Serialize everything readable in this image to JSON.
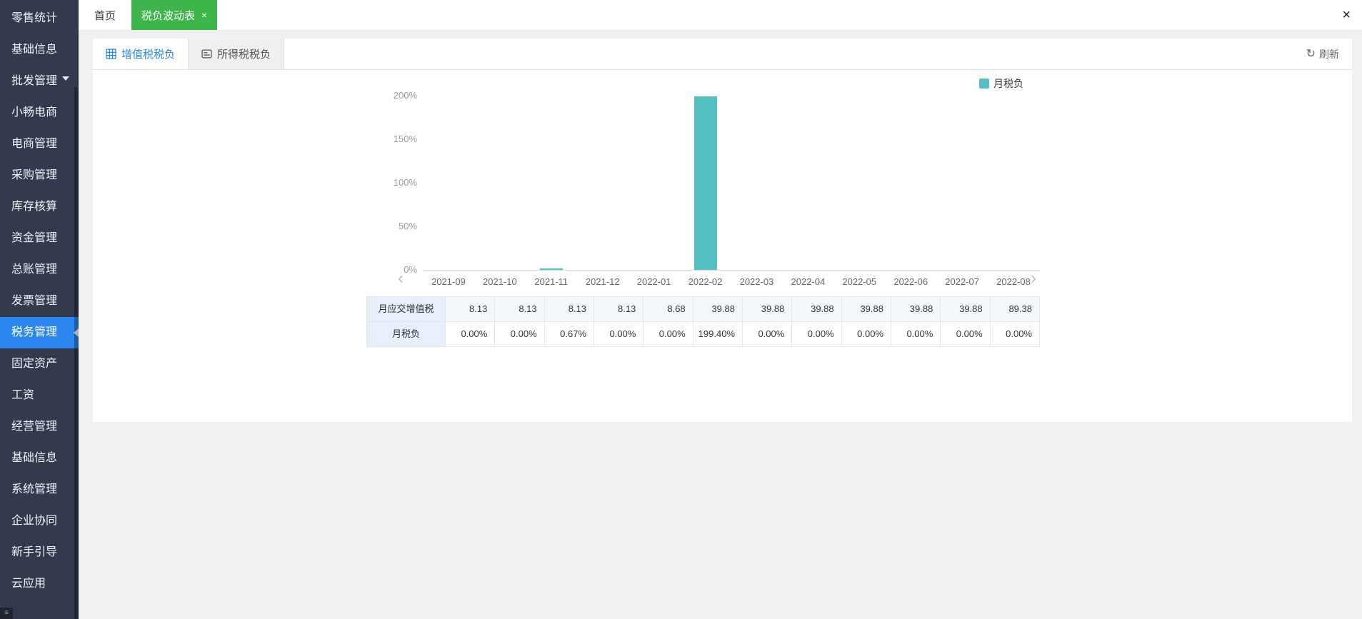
{
  "window": {
    "close_icon": "×"
  },
  "topbar": {
    "home_tab": "首页",
    "active_tab": {
      "label": "税负波动表",
      "close_icon": "×"
    }
  },
  "sidebar": {
    "footer_icon": "≡",
    "items": [
      {
        "label": "零售统计"
      },
      {
        "label": "基础信息"
      },
      {
        "label": "批发管理",
        "has_caret": true
      },
      {
        "label": "小畅电商"
      },
      {
        "label": "电商管理"
      },
      {
        "label": "采购管理"
      },
      {
        "label": "库存核算"
      },
      {
        "label": "资金管理"
      },
      {
        "label": "总账管理"
      },
      {
        "label": "发票管理"
      },
      {
        "label": "税务管理",
        "active": true
      },
      {
        "label": "固定资产"
      },
      {
        "label": "工资"
      },
      {
        "label": "经营管理"
      },
      {
        "label": "基础信息"
      },
      {
        "label": "系统管理"
      },
      {
        "label": "企业协同"
      },
      {
        "label": "新手引导"
      },
      {
        "label": "云应用"
      }
    ]
  },
  "panel": {
    "tabs": [
      {
        "label": "增值税税负",
        "active": true
      },
      {
        "label": "所得税税负",
        "active": false
      }
    ],
    "refresh_label": "刷新",
    "refresh_icon": "↻"
  },
  "chart_data": {
    "type": "bar",
    "title": "",
    "xlabel": "",
    "ylabel": "",
    "categories": [
      "2021-09",
      "2021-10",
      "2021-11",
      "2021-12",
      "2022-01",
      "2022-02",
      "2022-03",
      "2022-04",
      "2022-05",
      "2022-06",
      "2022-07",
      "2022-08"
    ],
    "series": [
      {
        "name": "月税负",
        "values": [
          0,
          0,
          0.67,
          0,
          0,
          199.4,
          0,
          0,
          0,
          0,
          0,
          0
        ]
      }
    ],
    "ylim": [
      0,
      200
    ],
    "yticks": [
      {
        "value": 0,
        "label": "0%"
      },
      {
        "value": 50,
        "label": "50%"
      },
      {
        "value": 100,
        "label": "100%"
      },
      {
        "value": 150,
        "label": "150%"
      },
      {
        "value": 200,
        "label": "200%"
      }
    ],
    "grid": false,
    "bar_color": "#54bfc0",
    "legend": {
      "position": "top-right",
      "entries": [
        {
          "label": "月税负",
          "color": "#54bfc0"
        }
      ]
    },
    "nav": {
      "prev_icon": "‹",
      "next_icon": "›"
    }
  },
  "table": {
    "rows": [
      {
        "label": "月应交增值税",
        "values": [
          "8.13",
          "8.13",
          "8.13",
          "8.13",
          "8.68",
          "39.88",
          "39.88",
          "39.88",
          "39.88",
          "39.88",
          "39.88",
          "89.38"
        ]
      },
      {
        "label": "月税负",
        "values": [
          "0.00%",
          "0.00%",
          "0.67%",
          "0.00%",
          "0.00%",
          "199.40%",
          "0.00%",
          "0.00%",
          "0.00%",
          "0.00%",
          "0.00%",
          "0.00%"
        ]
      }
    ]
  },
  "colors": {
    "sidebar_bg": "#333a4d",
    "sidebar_active": "#2c86f0",
    "tab_green": "#3db54a",
    "accent_blue": "#2b85e4",
    "bar_teal": "#54bfc0",
    "table_label_bg": "#e6effa",
    "table_row1_bg": "#f3f8fd"
  }
}
